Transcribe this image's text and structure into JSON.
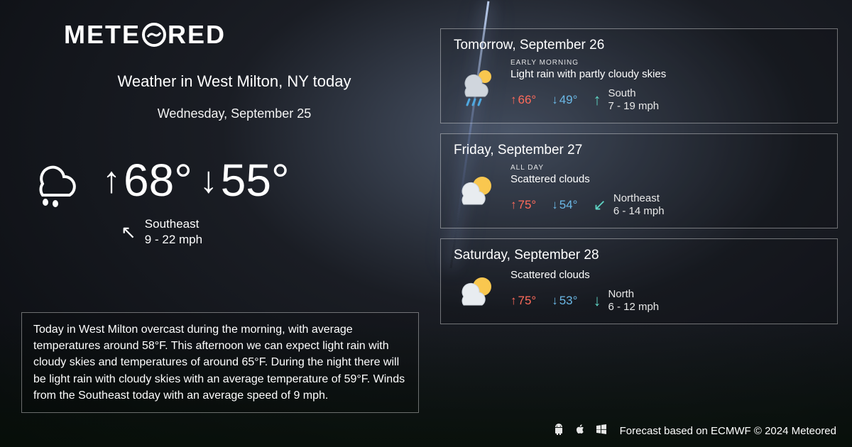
{
  "brand": {
    "name_pre": "METE",
    "name_post": "RED"
  },
  "today": {
    "title": "Weather in West Milton, NY today",
    "date": "Wednesday, September 25",
    "high": "68°",
    "low": "55°",
    "wind_dir": "Southeast",
    "wind_speed": "9 - 22 mph",
    "description": "Today in West Milton overcast during the morning, with average temperatures around 58°F. This afternoon we can expect light rain with cloudy skies and temperatures of around 65°F. During the night there will be light rain with cloudy skies with an average temperature of 59°F. Winds from the Southeast today with an average speed of 9 mph."
  },
  "forecast": [
    {
      "date": "Tomorrow, September 26",
      "period": "EARLY MORNING",
      "condition": "Light rain with partly cloudy skies",
      "high": "66°",
      "low": "49°",
      "wind_dir": "South",
      "wind_speed": "7 - 19 mph",
      "icon": "rain-sun",
      "wind_arrow": "↑",
      "wind_arrow_rotation": 0
    },
    {
      "date": "Friday, September 27",
      "period": "ALL DAY",
      "condition": "Scattered clouds",
      "high": "75°",
      "low": "54°",
      "wind_dir": "Northeast",
      "wind_speed": "6 - 14 mph",
      "icon": "partly-cloudy",
      "wind_arrow": "↙",
      "wind_arrow_rotation": 0
    },
    {
      "date": "Saturday, September 28",
      "period": "",
      "condition": "Scattered clouds",
      "high": "75°",
      "low": "53°",
      "wind_dir": "North",
      "wind_speed": "6 - 12 mph",
      "icon": "partly-cloudy",
      "wind_arrow": "↓",
      "wind_arrow_rotation": 0
    }
  ],
  "footer": {
    "text": "Forecast based on ECMWF © 2024 Meteored"
  },
  "colors": {
    "high_temp": "#ff6b5b",
    "low_temp": "#6bb8e6",
    "wind_arrow": "#5fd4c4",
    "text": "#ffffff",
    "border": "rgba(255,255,255,0.4)"
  }
}
